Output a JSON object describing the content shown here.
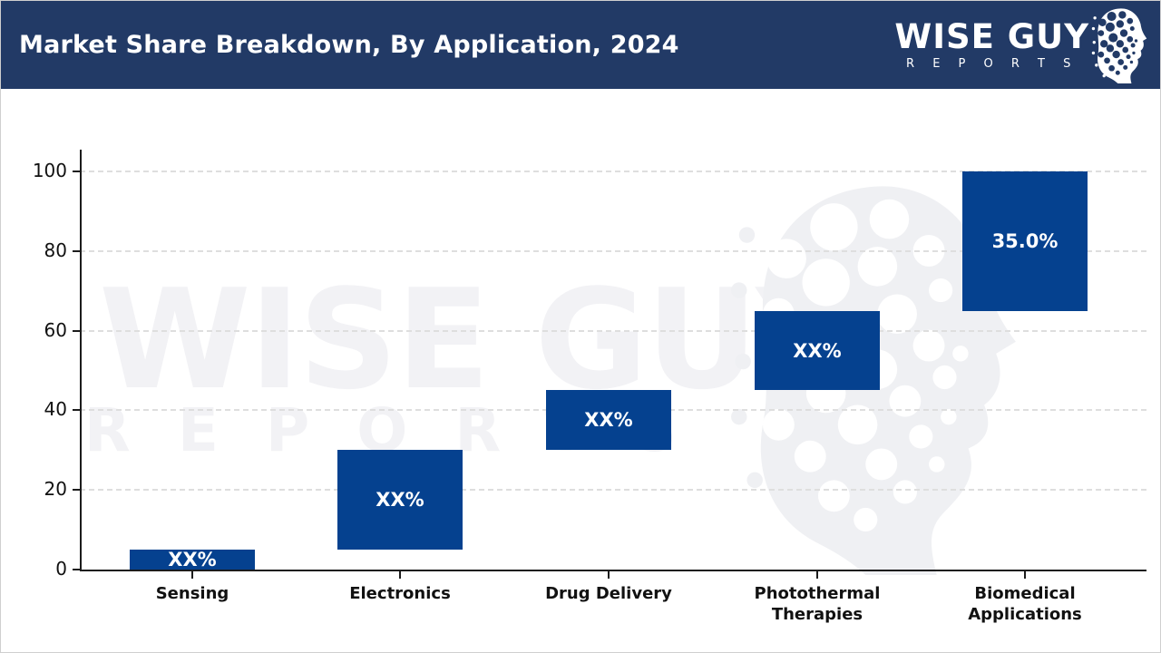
{
  "header": {
    "title": "Market Share Breakdown, By Application, 2024"
  },
  "logo": {
    "primary": "WISE GUY",
    "secondary": "R E P O R T S"
  },
  "watermark": {
    "primary": "WISE GUY",
    "secondary": "REPORTS"
  },
  "colors": {
    "header_bg": "#223a66",
    "bar": "#05418f",
    "bar_label": "#ffffff",
    "grid": "#dedede",
    "axis": "#1c1c1c",
    "watermark": "#f2f2f5"
  },
  "chart_data": {
    "type": "bar",
    "variant": "waterfall",
    "title": "Market Share Breakdown, By Application, 2024",
    "xlabel": "",
    "ylabel": "",
    "ylim": [
      0,
      100
    ],
    "yticks": [
      0,
      20,
      40,
      60,
      80,
      100
    ],
    "grid": "horizontal-dashed",
    "legend": "none",
    "categories": [
      "Sensing",
      "Electronics",
      "Drug Delivery",
      "Photothermal Therapies",
      "Biomedical Applications"
    ],
    "segments": [
      {
        "category": "Sensing",
        "start": 0,
        "end": 5,
        "value": 5,
        "label": "XX%"
      },
      {
        "category": "Electronics",
        "start": 5,
        "end": 30,
        "value": 25,
        "label": "XX%"
      },
      {
        "category": "Drug Delivery",
        "start": 30,
        "end": 45,
        "value": 15,
        "label": "XX%"
      },
      {
        "category": "Photothermal Therapies",
        "start": 45,
        "end": 65,
        "value": 20,
        "label": "XX%"
      },
      {
        "category": "Biomedical Applications",
        "start": 65,
        "end": 100,
        "value": 35,
        "label": "35.0%"
      }
    ]
  }
}
